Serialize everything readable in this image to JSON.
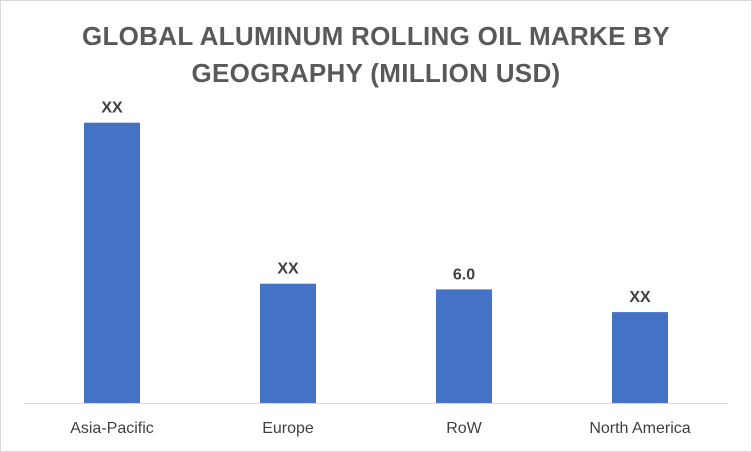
{
  "chart_data": {
    "type": "bar",
    "title_lines": [
      "GLOBAL ALUMINUM ROLLING OIL MARKE BY",
      "GEOGRAPHY (MILLION USD)"
    ],
    "categories": [
      "Asia-Pacific",
      "Europe",
      "RoW",
      "North America"
    ],
    "values": [
      14.8,
      6.3,
      6.0,
      4.8
    ],
    "data_labels": [
      "XX",
      "XX",
      "6.0",
      "XX"
    ],
    "xlabel": "",
    "ylabel": "",
    "ylim": [
      0,
      16
    ],
    "grid": false,
    "legend": "none",
    "colors": {
      "bar": "#4472c4",
      "axis": "#d9d9d9",
      "text": "#404040",
      "title": "#595959"
    }
  }
}
